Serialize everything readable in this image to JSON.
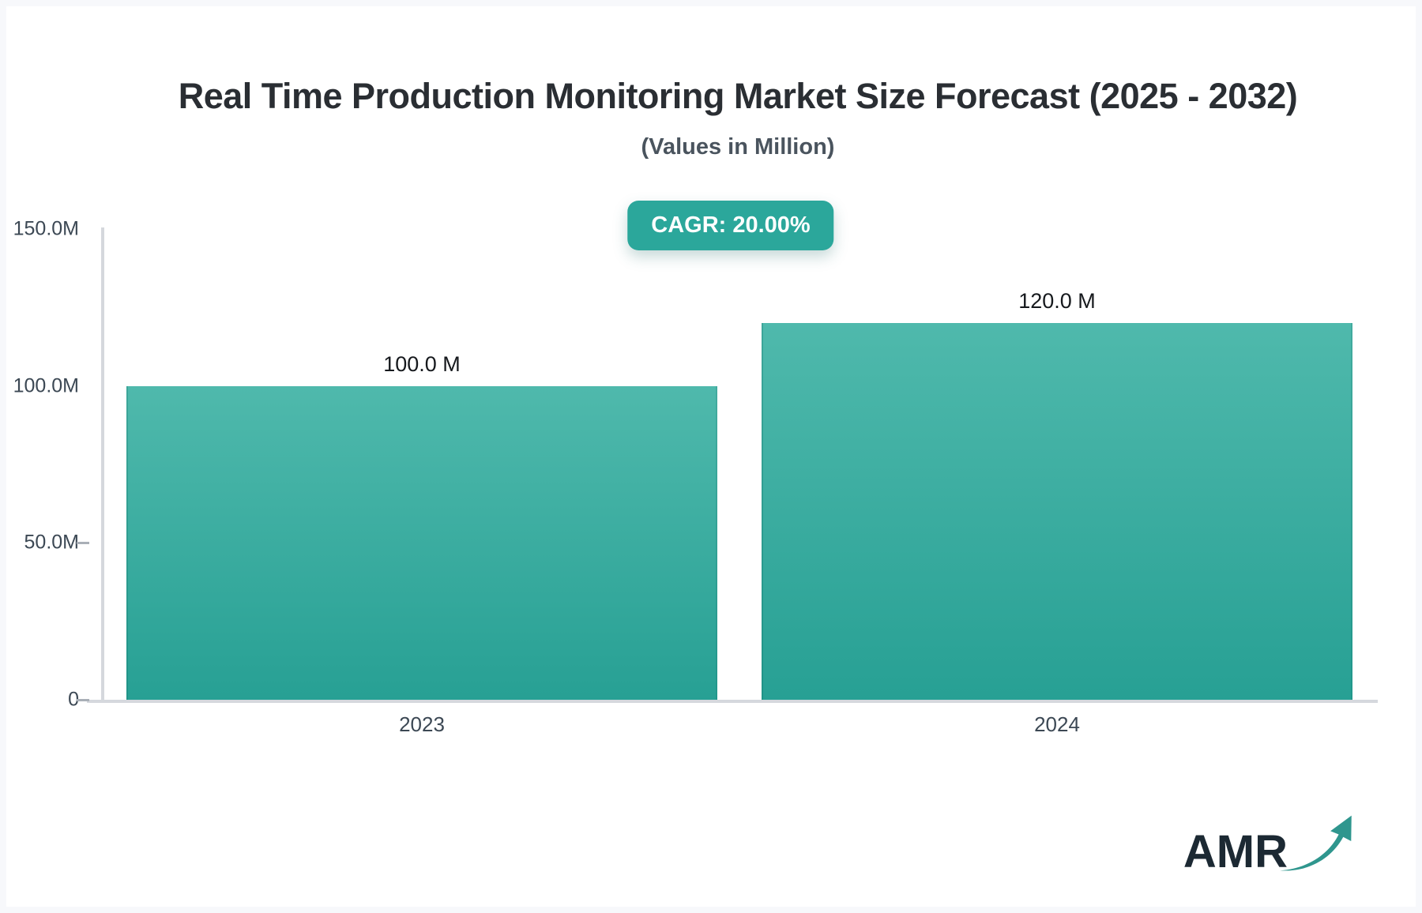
{
  "header": {
    "title": "Real Time Production Monitoring Market Size Forecast (2025 - 2032)",
    "subtitle": "(Values in Million)"
  },
  "badge": {
    "label": "CAGR: 20.00%",
    "background": "#2ba79b",
    "text_color": "#ffffff"
  },
  "chart_data": {
    "type": "bar",
    "title": "Real Time Production Monitoring Market Size Forecast (2025 - 2032)",
    "subtitle": "(Values in Million)",
    "categories": [
      "2023",
      "2024"
    ],
    "values": [
      100.0,
      120.0
    ],
    "value_labels": [
      "100.0 M",
      "120.0 M"
    ],
    "unit": "Million",
    "xlabel": "",
    "ylabel": "",
    "ylim": [
      0,
      150
    ],
    "yticks": [
      {
        "label": "0",
        "value": 0,
        "tick_visible": true
      },
      {
        "label": "50.0M",
        "value": 50,
        "tick_visible": true
      },
      {
        "label": "100.0M",
        "value": 100,
        "tick_visible": false
      },
      {
        "label": "150.0M",
        "value": 150,
        "tick_visible": false
      }
    ],
    "grid": false,
    "legend": false,
    "annotations": [
      "CAGR: 20.00%"
    ],
    "bar_gradient_top": "#4fb9ac",
    "bar_gradient_bottom": "#27a094",
    "axis_color": "#d5d8dd",
    "label_color": "#3c4854"
  },
  "logo": {
    "text": "AMR",
    "text_color": "#1c2933",
    "arrow_color": "#2f968e"
  }
}
